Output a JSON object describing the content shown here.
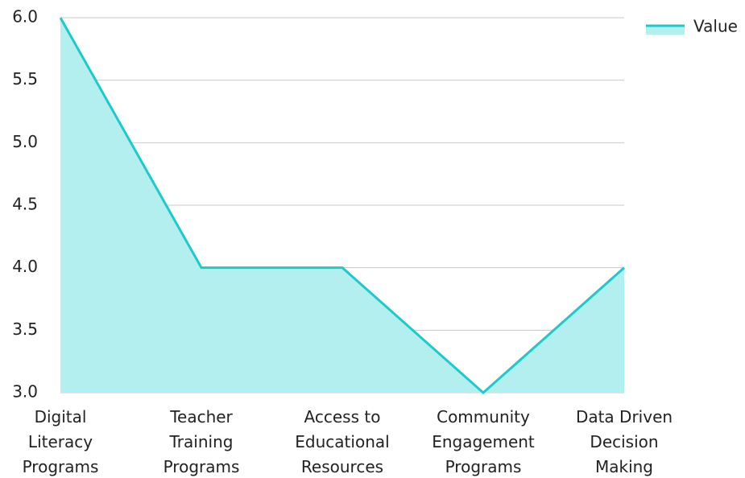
{
  "chart_data": {
    "type": "area",
    "categories": [
      "Digital Literacy Programs",
      "Teacher Training Programs",
      "Access to Educational Resources",
      "Community Engagement Programs",
      "Data Driven Decision Making"
    ],
    "series": [
      {
        "name": "Value",
        "color": "#1ccaca",
        "fill": "#b3efef",
        "values": [
          6,
          4,
          4,
          3,
          4
        ]
      }
    ],
    "ylim": [
      3,
      6
    ],
    "yticks": [
      {
        "value": 3,
        "label": "3.0"
      },
      {
        "value": 3.5,
        "label": "3.5"
      },
      {
        "value": 4,
        "label": "4.0"
      },
      {
        "value": 4.5,
        "label": "4.5"
      },
      {
        "value": 5,
        "label": "5.0"
      },
      {
        "value": 5.5,
        "label": "5.5"
      },
      {
        "value": 6,
        "label": "6.0"
      }
    ],
    "grid": true,
    "legend": "top-right"
  }
}
